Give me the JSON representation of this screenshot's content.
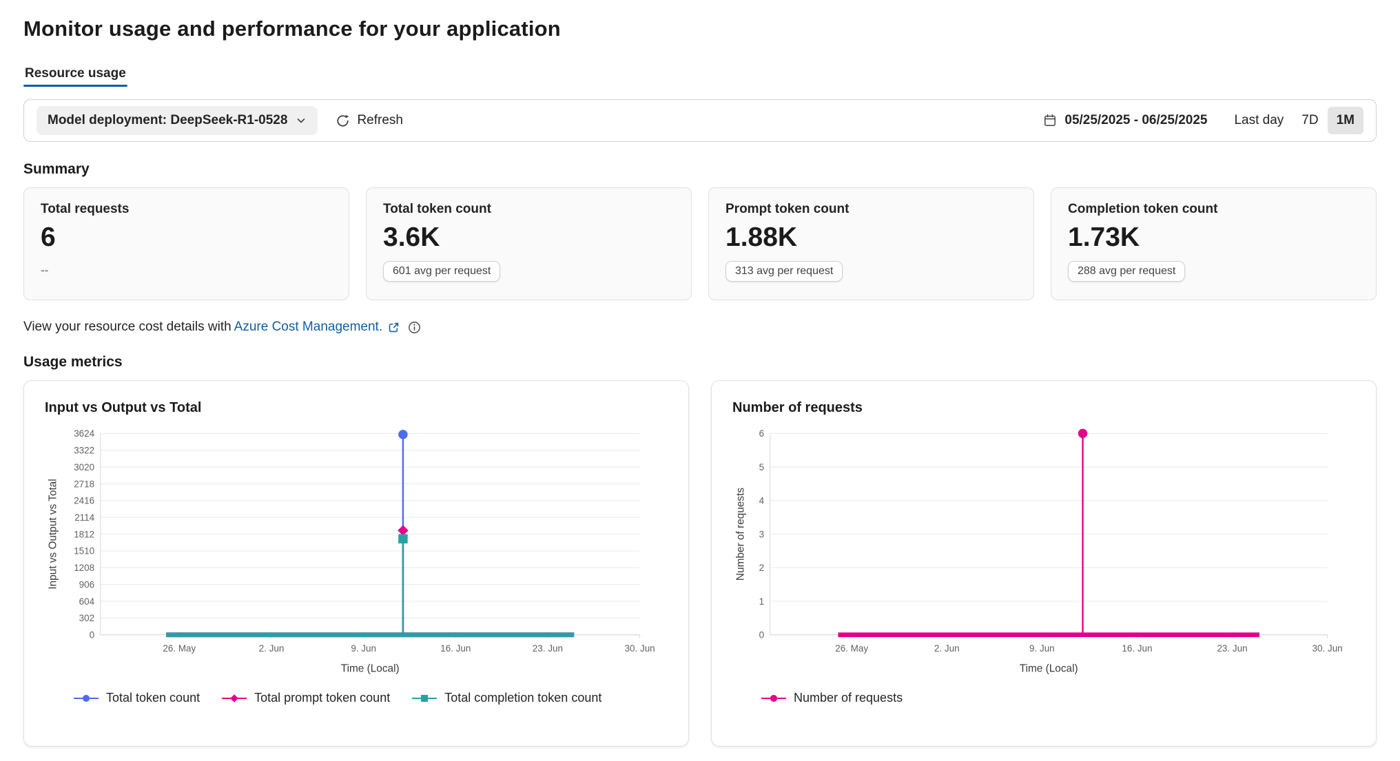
{
  "page_title": "Monitor usage and performance for your application",
  "tabs": [
    {
      "label": "Resource usage",
      "active": true
    }
  ],
  "toolbar": {
    "model_dropdown": {
      "label": "Model deployment: DeepSeek-R1-0528"
    },
    "refresh_label": "Refresh",
    "date_range": "05/25/2025 - 06/25/2025",
    "range_options": [
      {
        "label": "Last day",
        "selected": false
      },
      {
        "label": "7D",
        "selected": false
      },
      {
        "label": "1M",
        "selected": true
      }
    ]
  },
  "summary": {
    "heading": "Summary",
    "cards": [
      {
        "title": "Total requests",
        "value": "6",
        "sub": "--",
        "badge": null
      },
      {
        "title": "Total token count",
        "value": "3.6K",
        "sub": null,
        "badge": "601 avg per request"
      },
      {
        "title": "Prompt token count",
        "value": "1.88K",
        "sub": null,
        "badge": "313 avg per request"
      },
      {
        "title": "Completion token count",
        "value": "1.73K",
        "sub": null,
        "badge": "288 avg per request"
      }
    ]
  },
  "cost_note": {
    "prefix": "View your resource cost details with ",
    "link_text": "Azure Cost Management."
  },
  "usage_metrics": {
    "heading": "Usage metrics"
  },
  "colors": {
    "accent": "#115ea3",
    "link": "#115ea3",
    "total_token_count": "#4f6bed",
    "prompt_token_count": "#e3008c",
    "completion_token_count": "#2aa0a4",
    "number_of_requests": "#e3008c",
    "gridline": "#e8e8e8",
    "axis": "#d6d6d6"
  },
  "chart_data": [
    {
      "type": "line",
      "title": "Input vs Output vs Total",
      "xlabel": "Time (Local)",
      "ylabel": "Input vs Output vs Total",
      "x_domain": [
        "2025-05-20",
        "2025-06-30"
      ],
      "x_ticks": [
        {
          "date": "2025-05-26",
          "label": "26. May"
        },
        {
          "date": "2025-06-02",
          "label": "2. Jun"
        },
        {
          "date": "2025-06-09",
          "label": "9. Jun"
        },
        {
          "date": "2025-06-16",
          "label": "16. Jun"
        },
        {
          "date": "2025-06-23",
          "label": "23. Jun"
        },
        {
          "date": "2025-06-30",
          "label": "30. Jun"
        }
      ],
      "y_ticks": [
        0,
        302,
        604,
        906,
        1208,
        1510,
        1812,
        2114,
        2416,
        2718,
        3020,
        3322,
        3624
      ],
      "ylim": [
        0,
        3624
      ],
      "grid": true,
      "legend_position": "bottom",
      "series": [
        {
          "name": "Total token count",
          "color": "#4f6bed",
          "marker": "circle",
          "spike": {
            "date": "2025-06-12",
            "value": 3606
          },
          "baseline": {
            "value": 0,
            "start": "2025-05-25",
            "end": "2025-06-25"
          }
        },
        {
          "name": "Total prompt token count",
          "color": "#e3008c",
          "marker": "diamond",
          "spike": {
            "date": "2025-06-12",
            "value": 1878
          },
          "baseline": {
            "value": 0,
            "start": "2025-05-25",
            "end": "2025-06-25"
          }
        },
        {
          "name": "Total completion token count",
          "color": "#2aa0a4",
          "marker": "square",
          "spike": {
            "date": "2025-06-12",
            "value": 1728
          },
          "baseline": {
            "value": 0,
            "start": "2025-05-25",
            "end": "2025-06-25"
          }
        }
      ]
    },
    {
      "type": "line",
      "title": "Number of requests",
      "xlabel": "Time (Local)",
      "ylabel": "Number of requests",
      "x_domain": [
        "2025-05-20",
        "2025-06-30"
      ],
      "x_ticks": [
        {
          "date": "2025-05-26",
          "label": "26. May"
        },
        {
          "date": "2025-06-02",
          "label": "2. Jun"
        },
        {
          "date": "2025-06-09",
          "label": "9. Jun"
        },
        {
          "date": "2025-06-16",
          "label": "16. Jun"
        },
        {
          "date": "2025-06-23",
          "label": "23. Jun"
        },
        {
          "date": "2025-06-30",
          "label": "30. Jun"
        }
      ],
      "y_ticks": [
        0,
        1,
        2,
        3,
        4,
        5,
        6
      ],
      "ylim": [
        0,
        6
      ],
      "grid": true,
      "legend_position": "bottom",
      "series": [
        {
          "name": "Number of requests",
          "color": "#e3008c",
          "marker": "circle",
          "spike": {
            "date": "2025-06-12",
            "value": 6
          },
          "baseline": {
            "value": 0,
            "start": "2025-05-25",
            "end": "2025-06-25"
          }
        }
      ]
    }
  ]
}
